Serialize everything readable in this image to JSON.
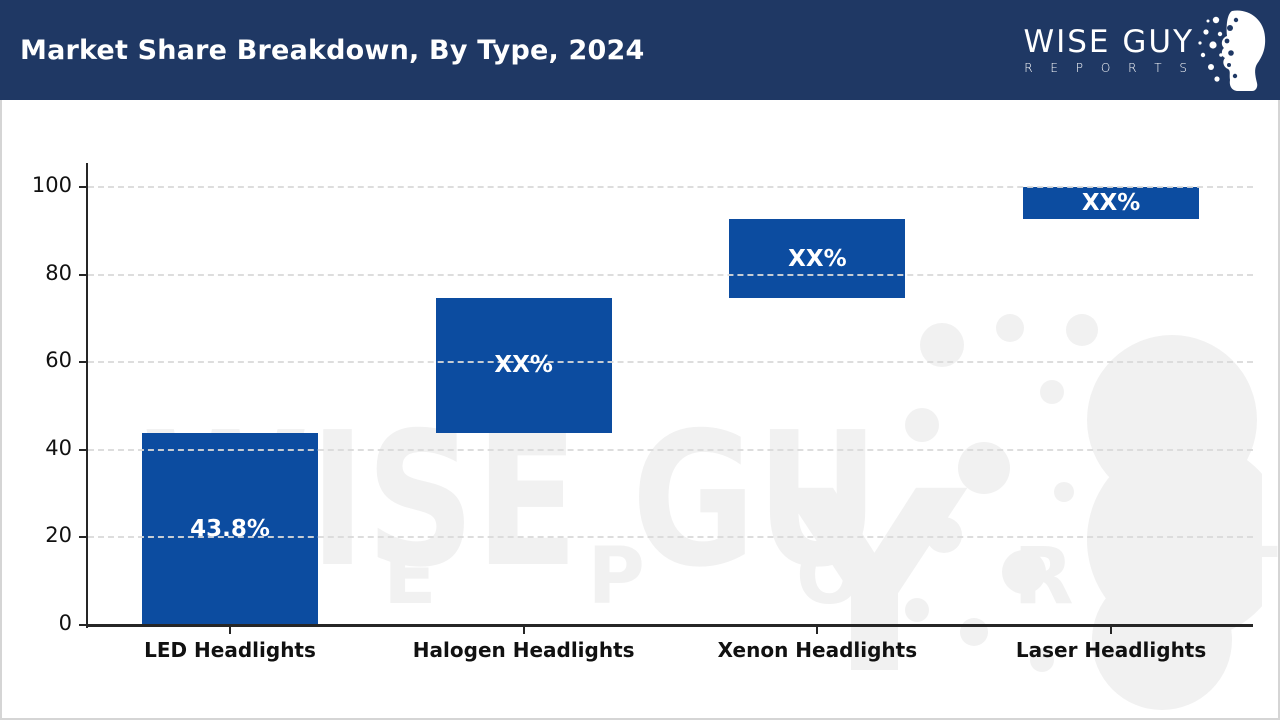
{
  "header": {
    "title": "Market Share Breakdown, By Type, 2024",
    "logo": {
      "name": "WISE GUY",
      "sub": "R E P O R T S"
    }
  },
  "watermark": {
    "big": "WISE GU",
    "y": "Y",
    "small": "R E P O R T S"
  },
  "chart_data": {
    "type": "bar",
    "variant": "waterfall",
    "title": "Market Share Breakdown, By Type, 2024",
    "categories": [
      "LED Headlights",
      "Halogen Headlights",
      "Xenon Headlights",
      "Laser Headlights"
    ],
    "segments": [
      {
        "category": "LED Headlights",
        "start": 0,
        "end": 43.8,
        "value": 43.8,
        "label": "43.8%"
      },
      {
        "category": "Halogen Headlights",
        "start": 43.8,
        "end": 74.7,
        "value": 30.9,
        "label": "XX%"
      },
      {
        "category": "Xenon Headlights",
        "start": 74.7,
        "end": 92.6,
        "value": 17.9,
        "label": "XX%"
      },
      {
        "category": "Laser Headlights",
        "start": 92.6,
        "end": 100,
        "value": 7.4,
        "label": "XX%"
      }
    ],
    "ylim": [
      0,
      100
    ],
    "yticks": [
      0,
      20,
      40,
      60,
      80,
      100
    ],
    "xlabel": "",
    "ylabel": "",
    "grid": "horizontal-dashed",
    "legend": "none",
    "colors": {
      "bar": "#0C4CA0",
      "bar_label": "#FFFFFF",
      "grid": "#DADADA",
      "axis": "#262626",
      "tick_text": "#111111",
      "header_bg": "#1F3864",
      "page_border": "#D5D5D5",
      "watermark": "#F1F1F1"
    }
  }
}
